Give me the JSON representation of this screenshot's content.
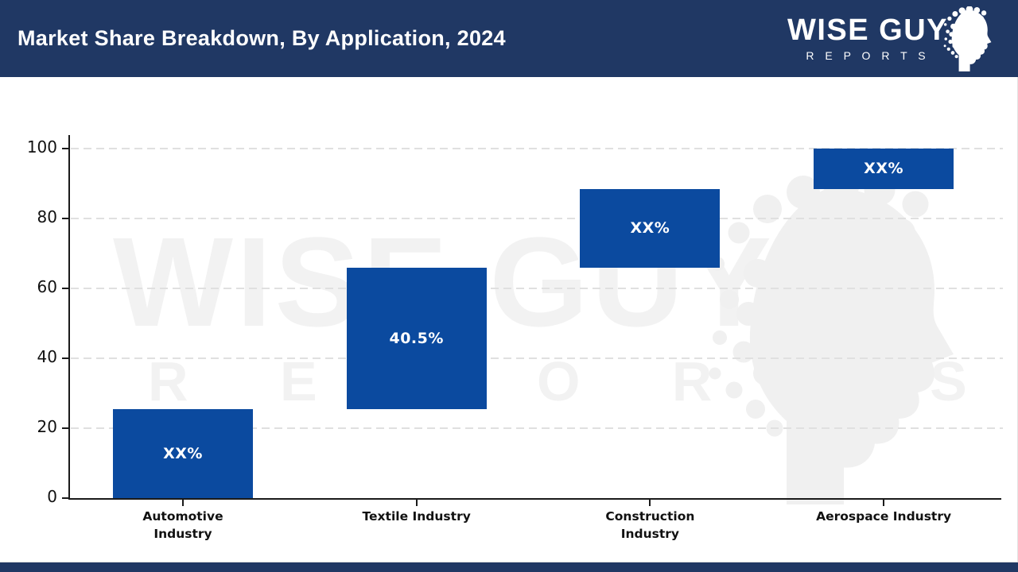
{
  "header": {
    "title": "Market Share Breakdown, By Application, 2024",
    "logo": {
      "wordmark": "WISE GUY",
      "subtitle": "R E P O R T S"
    }
  },
  "watermark": {
    "wordmark": "WISE GUY",
    "subtitle": "R E P O R T S"
  },
  "colors": {
    "header_bg": "#203864",
    "footer_bg": "#203864",
    "bar_fill": "#0b4a9f",
    "bar_label_text": "#ffffff",
    "title_text": "#ffffff",
    "axis": "#1a1a1a",
    "tick_label_text": "#111111",
    "gridline": "#e0e0e0",
    "watermark_text": "#f2f2f2"
  },
  "chart_data": {
    "type": "bar",
    "subtype": "floating-segment waterfall (stacked market-share breakdown)",
    "title": "Market Share Breakdown, By Application, 2024",
    "xlabel": "",
    "ylabel": "",
    "ylim": [
      0,
      105
    ],
    "yticks": [
      0,
      20,
      40,
      60,
      80,
      100
    ],
    "grid": "horizontal dashed",
    "legend": "none",
    "categories": [
      "Automotive Industry",
      "Textile Industry",
      "Construction Industry",
      "Aerospace Industry"
    ],
    "category_label_lines": [
      [
        "Automotive",
        "Industry"
      ],
      [
        "Textile Industry"
      ],
      [
        "Construction",
        "Industry"
      ],
      [
        "Aerospace Industry"
      ]
    ],
    "segments": [
      {
        "category": "Automotive Industry",
        "start": 0,
        "end": 25.5,
        "value": 25.5,
        "label": "XX%"
      },
      {
        "category": "Textile Industry",
        "start": 25.5,
        "end": 66,
        "value": 40.5,
        "label": "40.5%"
      },
      {
        "category": "Construction Industry",
        "start": 66,
        "end": 88.5,
        "value": 22.5,
        "label": "XX%"
      },
      {
        "category": "Aerospace Industry",
        "start": 88.5,
        "end": 100,
        "value": 11.5,
        "label": "XX%"
      }
    ]
  }
}
